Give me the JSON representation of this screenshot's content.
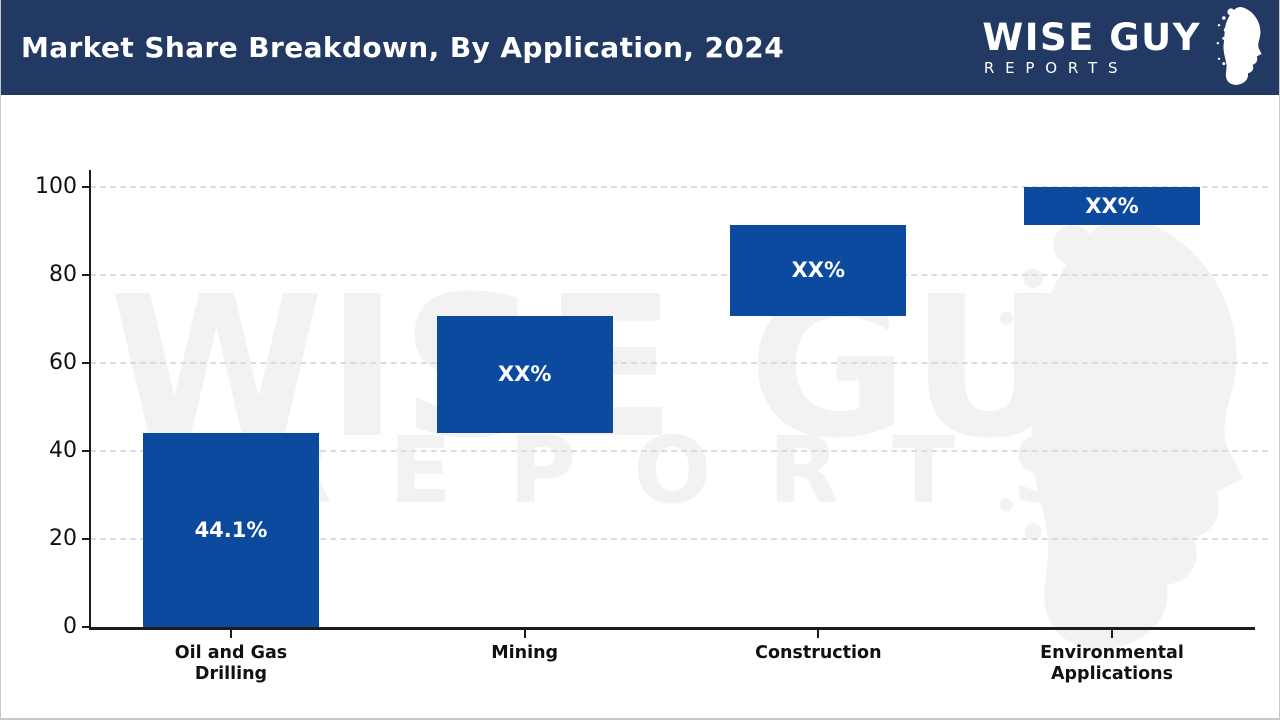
{
  "header": {
    "title": "Market Share Breakdown, By Application, 2024",
    "background_color": "#223a63"
  },
  "logo": {
    "brand_top": "WISE GUY",
    "brand_bottom": "REPORTS"
  },
  "watermark": {
    "line1": "WISE GUY",
    "line2": "REPORTS"
  },
  "colors": {
    "bar_blue": "#0b4a9f",
    "axis": "#1c1c1c",
    "gridline": "#dcdcdc",
    "watermark_gray": "#f2f2f2"
  },
  "chart_data": {
    "type": "bar",
    "variant": "floating-breakdown",
    "title": "Market Share Breakdown, By Application, 2024",
    "categories": [
      "Oil and Gas Drilling",
      "Mining",
      "Construction",
      "Environmental Applications"
    ],
    "category_label_lines": [
      [
        "Oil and Gas",
        "Drilling"
      ],
      [
        "Mining"
      ],
      [
        "Construction"
      ],
      [
        "Environmental",
        "Applications"
      ]
    ],
    "series": [
      {
        "name": "Market share (%)",
        "segments": [
          {
            "category": "Oil and Gas Drilling",
            "start": 0,
            "end": 44.1,
            "bar_label": "44.1%"
          },
          {
            "category": "Mining",
            "start": 44.1,
            "end": 70.7,
            "bar_label": "XX%"
          },
          {
            "category": "Construction",
            "start": 70.7,
            "end": 91.4,
            "bar_label": "XX%"
          },
          {
            "category": "Environmental Applications",
            "start": 91.4,
            "end": 100,
            "bar_label": "XX%"
          }
        ]
      }
    ],
    "ylim": [
      0,
      100
    ],
    "yticks": [
      0,
      20,
      40,
      60,
      80,
      100
    ],
    "xlabel": "",
    "ylabel": "",
    "grid": {
      "horizontal": true,
      "style": "dashed"
    },
    "legend": "none",
    "bar_color": "#0b4a9f",
    "bar_label_color": "#ffffff"
  }
}
